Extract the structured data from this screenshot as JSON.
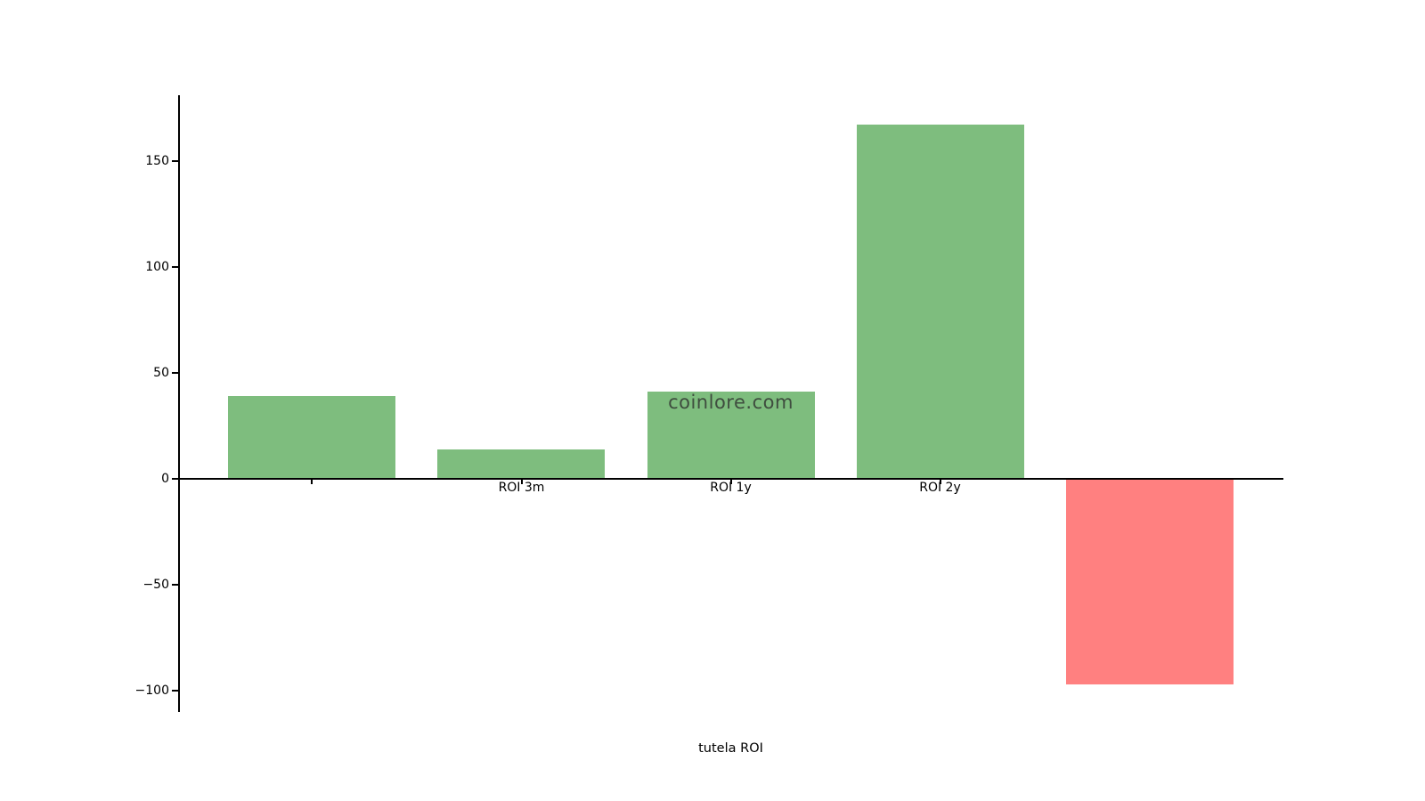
{
  "chart_data": {
    "type": "bar",
    "title": "",
    "xlabel": "tutela ROI",
    "ylabel": "",
    "watermark": "coinlore.com",
    "categories": [
      "",
      "ROI 3m",
      "ROI 1y",
      "ROI 2y",
      ""
    ],
    "values": [
      39,
      14,
      41,
      167,
      -97
    ],
    "bar_colors": [
      "#7ebd7e",
      "#7ebd7e",
      "#7ebd7e",
      "#7ebd7e",
      "#ff8080"
    ],
    "positive_color": "#7ebd7e",
    "negative_color": "#ff8080",
    "ylim": [
      -110,
      181
    ],
    "yticks": [
      150,
      100,
      50,
      0,
      -50,
      -100
    ],
    "ytick_labels": [
      "150",
      "100",
      "50",
      "0",
      "−50",
      "−100"
    ],
    "x_ticks_visible": [
      true,
      true,
      true,
      true,
      false
    ],
    "grid": false,
    "legend": "none",
    "axis_color": "#000000",
    "background": "#ffffff"
  }
}
